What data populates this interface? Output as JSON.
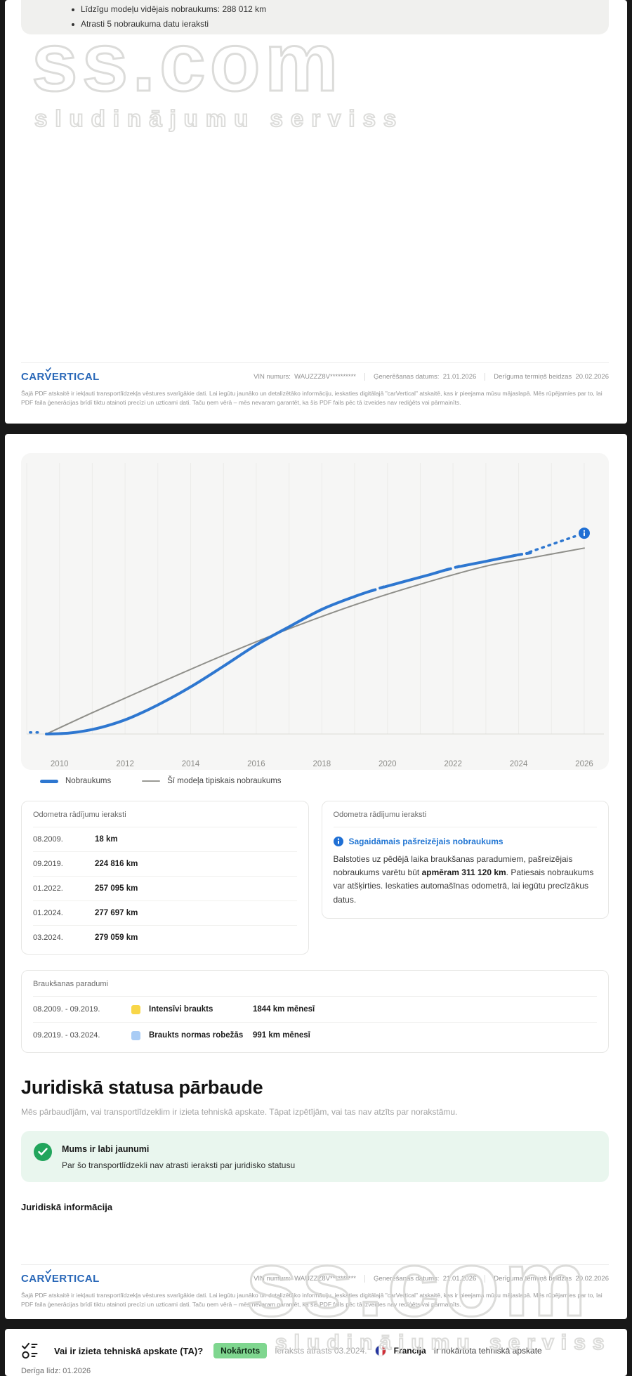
{
  "theme": {
    "accent_blue": "#2e77d0",
    "link_blue": "#2276d3",
    "logo_blue": "#2a68b8",
    "typical_gray": "#9a9a95",
    "badge_green_bg": "#7fd68f",
    "success_green": "#22a55c",
    "good_news_bg": "#e9f6ee",
    "habit_yellow": "#f8d648",
    "habit_light_blue": "#a9ccf5",
    "chart_bg": "#f6f6f5"
  },
  "watermark": {
    "title": "ss.com",
    "subtitle": "sludinājumu serviss"
  },
  "page1": {
    "bullets": [
      "Līdzīgu modeļu vidējais nobraukums: 288 012 km",
      "Atrasti 5 nobraukuma datu ieraksti"
    ]
  },
  "footer": {
    "logo": "CARVERTICAL",
    "meta": [
      {
        "label": "VIN numurs:",
        "value": "WAUZZZ8V**********"
      },
      {
        "label": "Ģenerēšanas datums:",
        "value": "21.01.2026"
      },
      {
        "label": "Derīguma termiņš beidzas",
        "value": "20.02.2026"
      }
    ],
    "disclaimer": "Šajā PDF atskaitē ir iekļauti transportlīdzekļa vēstures svarīgākie dati. Lai iegūtu jaunāko un detalizētāko informāciju, ieskaties digitālajā \"carVertical\" atskaitē, kas ir pieejama mūsu mājaslapā. Mēs rūpējamies par to, lai PDF faila ģenerācijas brīdī tiktu atainoti precīzi un uzticami dati. Taču ņem vērā – mēs nevaram garantēt, ka šis PDF fails pēc tā izveides nav rediģēts vai pārmainīts."
  },
  "chart_data": {
    "type": "line",
    "title": "",
    "xlabel": "",
    "ylabel": "",
    "x_ticks": [
      2010,
      2012,
      2014,
      2016,
      2018,
      2020,
      2022,
      2024,
      2026
    ],
    "x_range": [
      2009.0,
      2026.6
    ],
    "y_range": [
      0,
      420000
    ],
    "grid": "vertical",
    "legend_position": "bottom",
    "series": [
      {
        "name": "Nobraukums",
        "color": "#2e77d0",
        "width": 4,
        "points": [
          [
            2009.6,
            18
          ],
          [
            2010.3,
            1500
          ],
          [
            2011,
            7000
          ],
          [
            2011.6,
            15000
          ],
          [
            2012.2,
            26000
          ],
          [
            2013,
            45000
          ],
          [
            2014,
            73000
          ],
          [
            2015,
            105000
          ],
          [
            2016,
            138000
          ],
          [
            2017,
            166000
          ],
          [
            2018,
            193000
          ],
          [
            2019,
            213000
          ],
          [
            2019.7,
            224816
          ],
          [
            2020.5,
            236000
          ],
          [
            2021.3,
            247000
          ],
          [
            2022,
            257095
          ],
          [
            2023,
            267500
          ],
          [
            2024,
            277697
          ],
          [
            2024.17,
            279059
          ]
        ],
        "records": [
          [
            2019.7,
            224816
          ],
          [
            2022,
            257095
          ],
          [
            2024,
            277697
          ],
          [
            2024.17,
            279059
          ]
        ],
        "start_marks": [
          2009.12,
          2009.32
        ],
        "projection": {
          "style": "dashed",
          "points": [
            [
              2024.17,
              279059
            ],
            [
              2026,
              311120
            ]
          ]
        }
      },
      {
        "name": "Šī modeļa tipiskais nobraukums",
        "color": "#8f8f8a",
        "width": 2,
        "points": [
          [
            2009.6,
            0
          ],
          [
            2011,
            33000
          ],
          [
            2013,
            78000
          ],
          [
            2015,
            122000
          ],
          [
            2017,
            163000
          ],
          [
            2019,
            200000
          ],
          [
            2021,
            232000
          ],
          [
            2023,
            260000
          ],
          [
            2024.5,
            274000
          ],
          [
            2026,
            288012
          ]
        ]
      }
    ],
    "end_marker": {
      "x": 2026,
      "y": 311120,
      "icon": "info"
    }
  },
  "odometer": {
    "title": "Odometra rādījumu ieraksti",
    "rows": [
      {
        "date": "08.2009.",
        "value": "18 km"
      },
      {
        "date": "09.2019.",
        "value": "224 816 km"
      },
      {
        "date": "01.2022.",
        "value": "257 095 km"
      },
      {
        "date": "01.2024.",
        "value": "277 697 km"
      },
      {
        "date": "03.2024.",
        "value": "279 059 km"
      }
    ]
  },
  "expected": {
    "title": "Odometra rādījumu ieraksti",
    "link": "Sagaidāmais pašreizējais nobraukums",
    "body_1": "Balstoties uz pēdējā laika braukšanas paradumiem, pašreizējais nobraukums varētu būt ",
    "body_bold": "apmēram 311 120 km",
    "body_2": ". Patiesais nobraukums var atšķirties. Ieskaties automašīnas odometrā, lai iegūtu precīzākus datus."
  },
  "habits": {
    "title": "Braukšanas paradumi",
    "rows": [
      {
        "period": "08.2009. - 09.2019.",
        "color": "#f8d648",
        "label": "Intensīvi braukts",
        "value": "1844 km mēnesī"
      },
      {
        "period": "09.2019. - 03.2024.",
        "color": "#a9ccf5",
        "label": "Braukts normas robežās",
        "value": "991 km mēnesī"
      }
    ]
  },
  "legal": {
    "title": "Juridiskā statusa pārbaude",
    "subtitle": "Mēs pārbaudījām, vai transportlīdzeklim ir izieta tehniskā apskate. Tāpat izpētījām, vai tas nav atzīts par norakstāmu.",
    "good_news_title": "Mums ir labi jaunumi",
    "good_news_text": "Par šo transportlīdzekli nav atrasti ieraksti par juridisko statusu",
    "info_heading": "Juridiskā informācija"
  },
  "inspection": {
    "question": "Vai ir izieta tehniskā apskate (TA)?",
    "badge": "Nokārtots",
    "record": "Ieraksts atrasts 03.2024.",
    "country": "Francija",
    "result": "Ir nokārtota tehniskā apskate",
    "valid_until": "Derīga līdz: 01.2026"
  }
}
